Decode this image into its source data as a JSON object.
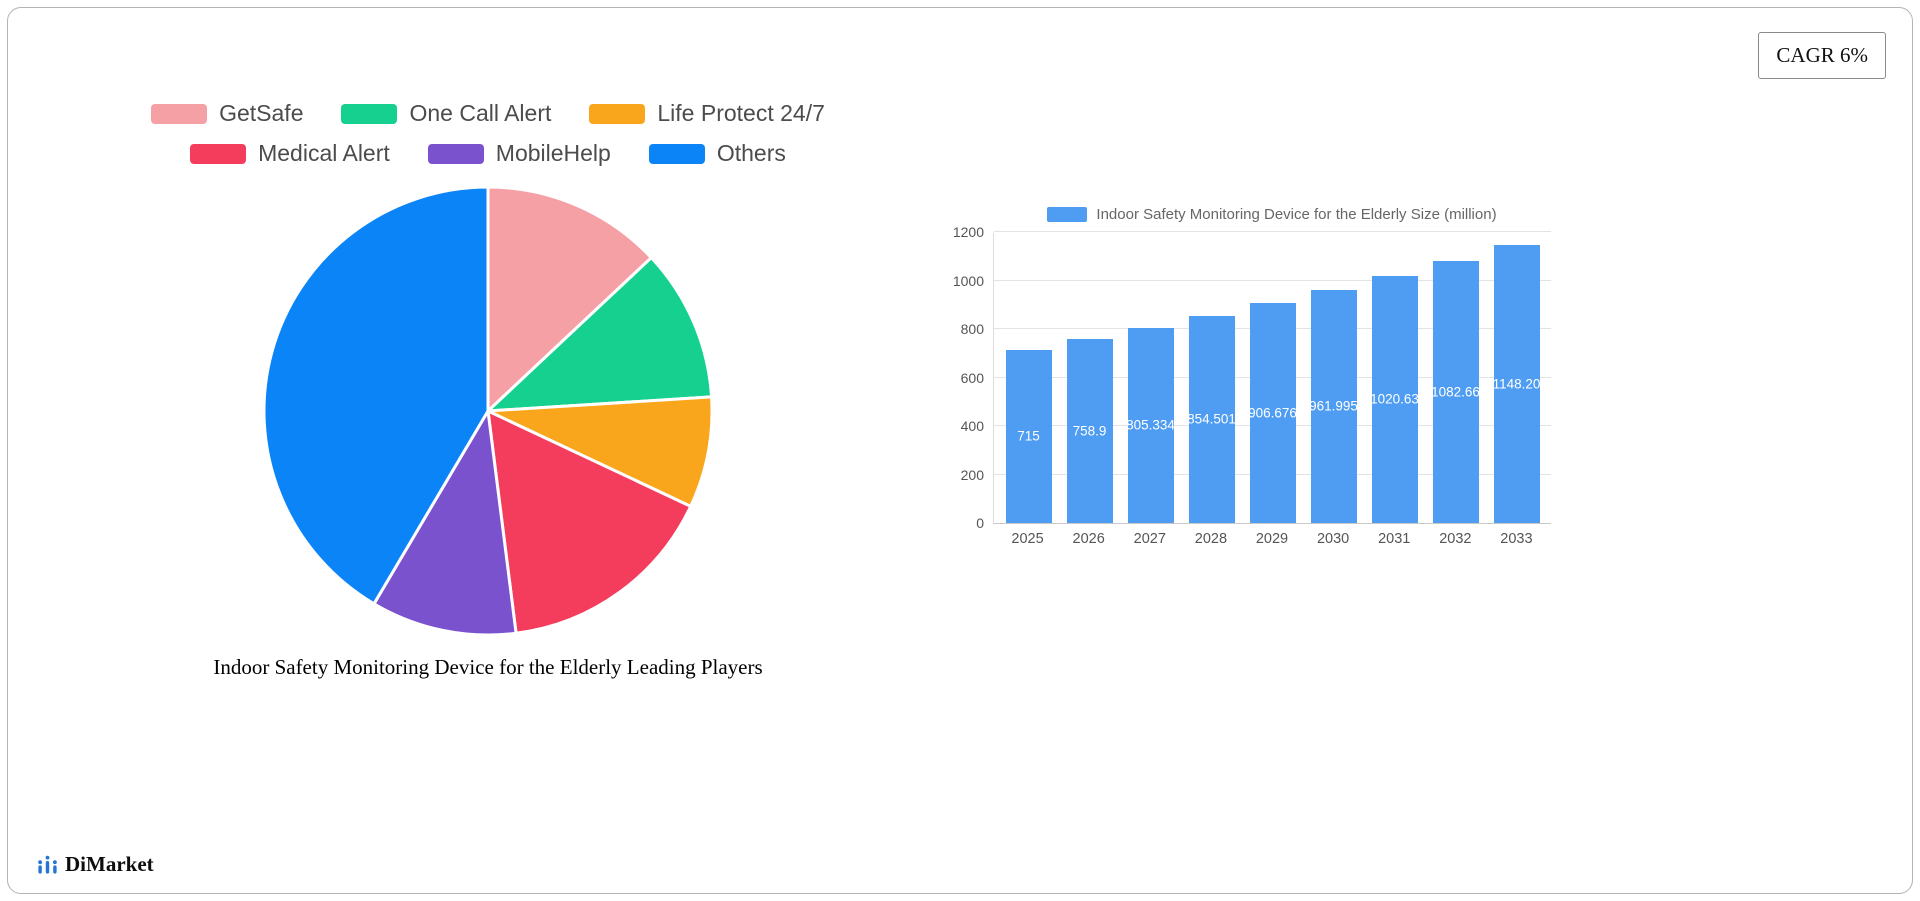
{
  "cagr_badge": "CAGR 6%",
  "logo": {
    "text": "DiMarket"
  },
  "chart_data": [
    {
      "type": "pie",
      "title": "Indoor Safety Monitoring Device for the Elderly Leading Players",
      "labels": [
        "GetSafe",
        "One Call Alert",
        "Life Protect 24/7",
        "Medical Alert",
        "MobileHelp",
        "Others"
      ],
      "values": [
        13,
        11,
        8,
        16,
        10.5,
        41.5
      ],
      "colors": [
        "#F5A0A5",
        "#16D090",
        "#F9A61D",
        "#F43D5C",
        "#7A52CE",
        "#0A84F6"
      ],
      "legend_rows": [
        [
          0,
          1,
          2
        ],
        [
          3,
          4,
          5
        ]
      ],
      "legend_position": "top"
    },
    {
      "type": "bar",
      "series_label": "Indoor Safety Monitoring Device for the Elderly Size (million)",
      "categories": [
        "2025",
        "2026",
        "2027",
        "2028",
        "2029",
        "2030",
        "2031",
        "2032",
        "2033"
      ],
      "values": [
        715,
        758.9,
        805.334,
        854.501,
        906.676,
        961.995,
        1020.63,
        1082.66,
        1148.2
      ],
      "value_labels": [
        "715",
        "758.9",
        "805.334",
        "854.501",
        "906.676",
        "961.995",
        "1020.63",
        "1082.66",
        "1148.20"
      ],
      "bar_color": "#4F9DF3",
      "ylim": [
        0,
        1200
      ],
      "yticks": [
        0,
        200,
        400,
        600,
        800,
        1000,
        1200
      ],
      "grid": true,
      "legend_position": "top"
    }
  ]
}
